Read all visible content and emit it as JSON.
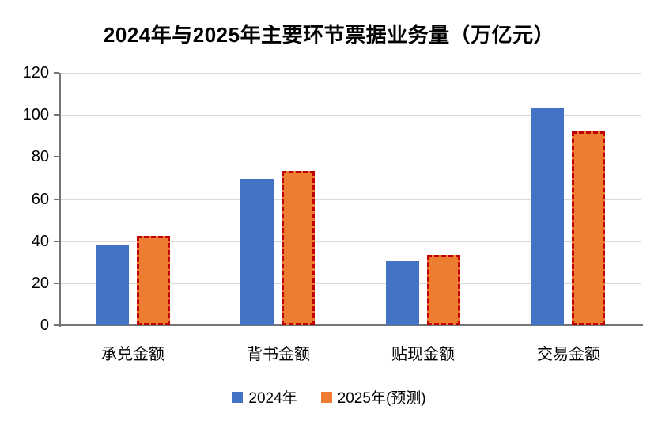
{
  "chart_data": {
    "type": "bar",
    "title": "2024年与2025年主要环节票据业务量（万亿元）",
    "categories": [
      "承兑金额",
      "背书金额",
      "贴现金额",
      "交易金额"
    ],
    "series": [
      {
        "name": "2024年",
        "values": [
          38.3,
          69.7,
          30.3,
          103.4
        ],
        "color": "#4472C4",
        "outline": "none"
      },
      {
        "name": "2025年(预测)",
        "values": [
          42.5,
          73.2,
          33.6,
          92.1
        ],
        "color": "#ED7D31",
        "outline": "#C00000",
        "outline_style": "dashed"
      }
    ],
    "xlabel": "",
    "ylabel": "",
    "ylim": [
      0,
      120
    ],
    "yticks": [
      0,
      20,
      40,
      60,
      80,
      100,
      120
    ],
    "grid": true,
    "legend_position": "bottom",
    "colors": {
      "grid": "#D9D9D9",
      "axis": "#757575",
      "title": "#000000",
      "background": "#FFFFFF"
    }
  }
}
